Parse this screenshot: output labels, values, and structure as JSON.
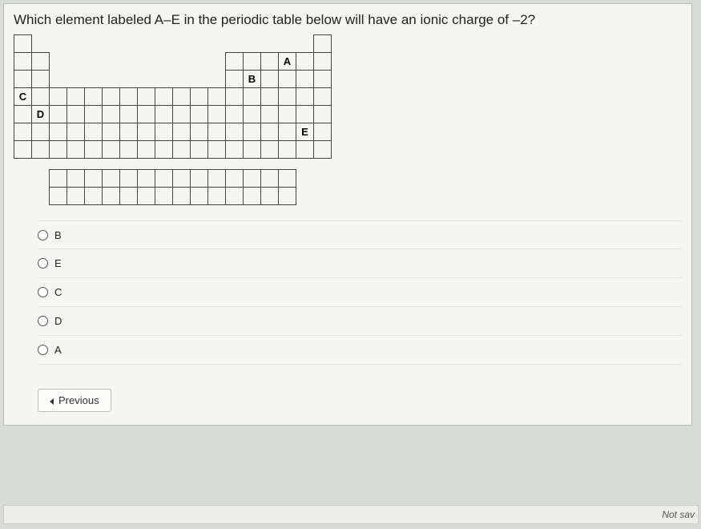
{
  "question": {
    "text": "Which element labeled A–E in the periodic table below will have an ionic charge of –2?"
  },
  "periodic_table": {
    "cell_size": 22,
    "main_rows": 7,
    "main_cols": 18,
    "f_block_rows": 2,
    "f_block_cols": 14,
    "f_block_offset_col": 2,
    "labels": {
      "A": {
        "row": 1,
        "col": 15
      },
      "B": {
        "row": 2,
        "col": 13
      },
      "C": {
        "row": 3,
        "col": 0
      },
      "D": {
        "row": 4,
        "col": 1
      },
      "E": {
        "row": 5,
        "col": 16
      }
    },
    "layout_note": "standard periodic table silhouette — row 0: cols 0,17; row 1: cols 0-1,12-17; row 2: cols 0-1,12-17; rows 3-6: cols 0-17; f-block separate 2x14"
  },
  "options": [
    {
      "value": "B",
      "label": "B"
    },
    {
      "value": "E",
      "label": "E"
    },
    {
      "value": "C",
      "label": "C"
    },
    {
      "value": "D",
      "label": "D"
    },
    {
      "value": "A",
      "label": "A"
    }
  ],
  "buttons": {
    "previous": "Previous"
  },
  "footer": {
    "status": "Not sav"
  },
  "colors": {
    "page_bg": "#d8dcd8",
    "panel_bg": "#f5f6f2",
    "cell_border": "#444444",
    "text": "#222222"
  }
}
